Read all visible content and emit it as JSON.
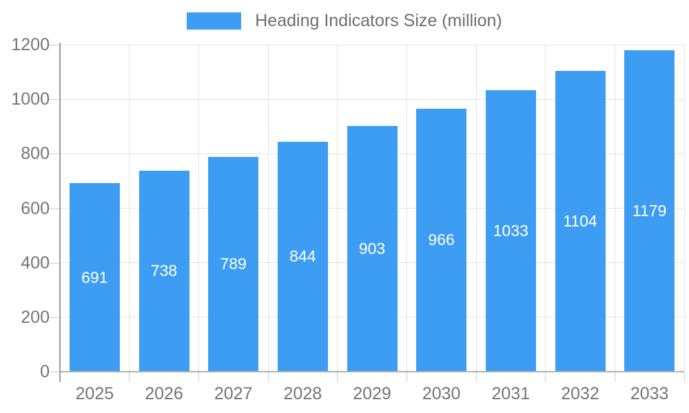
{
  "chart_data": {
    "type": "bar",
    "title": "Heading Indicators Size (million)",
    "legend_position": "top",
    "categories": [
      "2025",
      "2026",
      "2027",
      "2028",
      "2029",
      "2030",
      "2031",
      "2032",
      "2033"
    ],
    "series": [
      {
        "name": "Heading Indicators Size (million)",
        "values": [
          691,
          738,
          789,
          844,
          903,
          966,
          1033,
          1104,
          1179
        ]
      }
    ],
    "xlabel": "",
    "ylabel": "",
    "ylim": [
      0,
      1200
    ],
    "yticks": [
      0,
      200,
      400,
      600,
      800,
      1000,
      1200
    ],
    "grid": true,
    "value_labels": "inside-center",
    "colors": {
      "bar": "#3D9DF3",
      "value_label": "#FFFFFF",
      "axis_text": "#757575",
      "title_text": "#6E6E6E",
      "gridline": "#E3E3E3",
      "baseline": "#B0B0B0",
      "axis_line": "#9B9B9B",
      "tick": "#CCCCCC",
      "background": "#FFFFFF"
    }
  }
}
